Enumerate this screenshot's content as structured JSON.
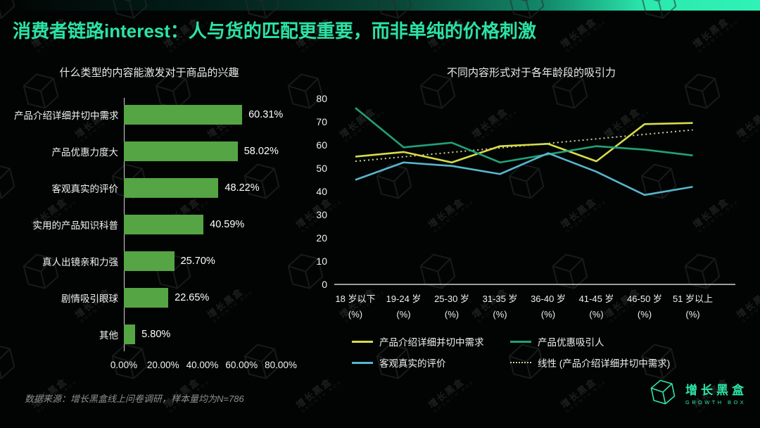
{
  "header": {
    "title": "消费者链路interest：人与货的匹配更重要，而非单纯的价格刺激"
  },
  "footer": {
    "source_note": "数据来源：增长黑盒线上问卷调研，样本量均为N=786"
  },
  "logo": {
    "name_cn": "增长黑盒",
    "name_en": "GROWTH BOX"
  },
  "watermark": {
    "text_cn": "增长黑盒",
    "text_en": "GROWTH BOX"
  },
  "colors": {
    "accent": "#2BE3A6",
    "bar_green": "#55A544",
    "line_yellow": "#D6DC49",
    "line_teal": "#22A179",
    "line_blue": "#58B6CD",
    "trend_dotted": "#C9CF9A",
    "axis": "#CFCFCF"
  },
  "chart_data": [
    {
      "type": "bar",
      "orientation": "horizontal",
      "title": "什么类型的内容能激发对于商品的兴趣",
      "categories": [
        "产品介绍详细并切中需求",
        "产品优惠力度大",
        "客观真实的评价",
        "实用的产品知识科普",
        "真人出镜亲和力强",
        "剧情吸引眼球",
        "其他"
      ],
      "values": [
        60.31,
        58.02,
        48.22,
        40.59,
        25.7,
        22.65,
        5.8
      ],
      "value_labels": [
        "60.31%",
        "58.02%",
        "48.22%",
        "40.59%",
        "25.70%",
        "22.65%",
        "5.80%"
      ],
      "xlim": [
        0,
        80
      ],
      "x_tick_values": [
        0,
        20,
        40,
        60,
        80
      ],
      "x_tick_labels": [
        "0.00%",
        "20.00%",
        "40.00%",
        "60.00%",
        "80.00%"
      ],
      "grid": false,
      "bar_color": "#55A544"
    },
    {
      "type": "line",
      "title": "不同内容形式对于各年龄段的吸引力",
      "categories": [
        "18 岁以下",
        "19-24 岁",
        "25-30 岁",
        "31-35 岁",
        "36-40 岁",
        "41-45 岁",
        "46-50 岁",
        "51 岁以上"
      ],
      "category_unit": "(%)",
      "ylim": [
        0,
        80
      ],
      "y_ticks": [
        0,
        10,
        20,
        30,
        40,
        50,
        60,
        70,
        80
      ],
      "grid": false,
      "legend_position": "bottom",
      "series": [
        {
          "name": "产品介绍详细并切中需求",
          "color": "#D6DC49",
          "values": [
            55,
            57,
            52.5,
            59.5,
            60.5,
            53,
            69,
            69.5
          ]
        },
        {
          "name": "产品优惠吸引人",
          "color": "#22A179",
          "values": [
            76,
            59,
            61,
            52.5,
            56,
            59.5,
            58,
            55.5
          ]
        },
        {
          "name": "客观真实的评价",
          "color": "#58B6CD",
          "values": [
            45,
            52.5,
            51,
            47.5,
            56.5,
            48.5,
            38.5,
            42
          ]
        }
      ],
      "trend": {
        "name": "线性 (产品介绍详细并切中需求)",
        "color": "#C9CF9A",
        "start_value": 53,
        "end_value": 66.5
      }
    }
  ]
}
